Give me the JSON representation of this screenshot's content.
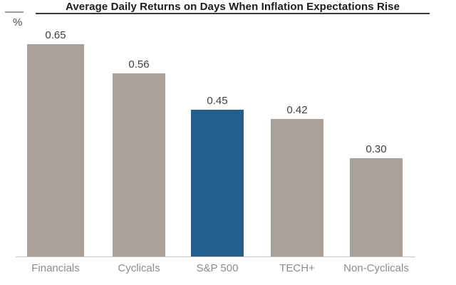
{
  "title": "Average Daily Returns on Days When Inflation Expectations Rise",
  "y_axis_unit": "%",
  "chart_data": {
    "type": "bar",
    "title": "Average Daily Returns on Days When Inflation Expectations Rise",
    "categories": [
      "Financials",
      "Cyclicals",
      "S&P 500",
      "TECH+",
      "Non-Cyclicals"
    ],
    "values": [
      0.65,
      0.56,
      0.45,
      0.42,
      0.3
    ],
    "value_labels": [
      "0.65",
      "0.56",
      "0.45",
      "0.42",
      "0.30"
    ],
    "xlabel": "",
    "ylabel": "%",
    "ylim": [
      0,
      0.7
    ],
    "grid": false,
    "legend": "none",
    "highlighted_category": "S&P 500",
    "colors": {
      "bar_default": "#a8a29b",
      "bar_highlight": "#235e8d",
      "value_label": "#3f3f3f",
      "category_label": "#8c8c8c",
      "title_text": "#1b1b1b",
      "title_underline": "#3a3a3a",
      "baseline": "#c9c5c1"
    }
  }
}
